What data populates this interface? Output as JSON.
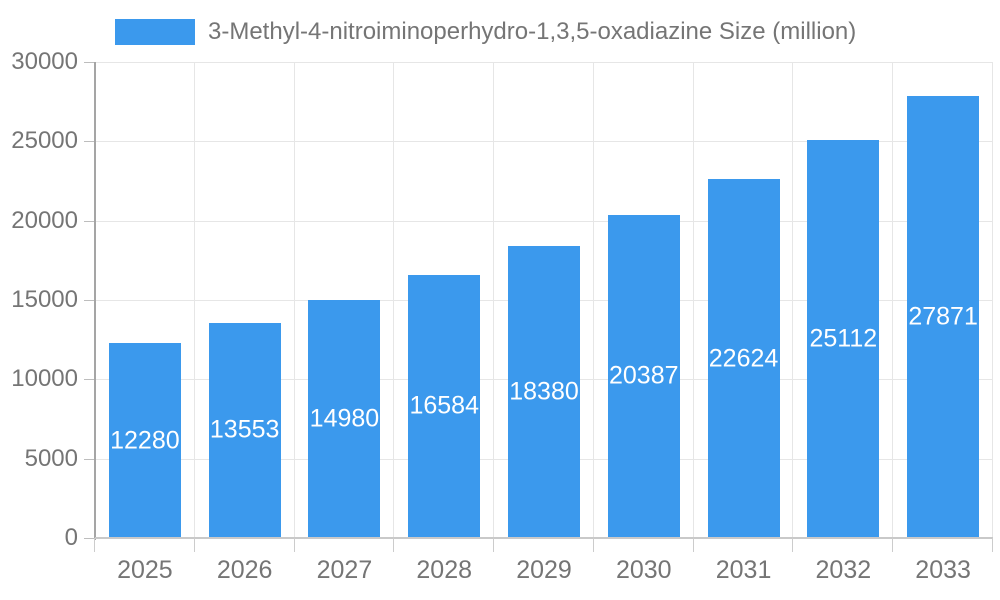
{
  "chart_data": {
    "type": "bar",
    "title": "3-Methyl-4-nitroiminoperhydro-1,3,5-oxadiazine Size (million)",
    "legend_label": "3-Methyl-4-nitroiminoperhydro-1,3,5-oxadiazine Size (million)",
    "legend_position": "top",
    "categories": [
      "2025",
      "2026",
      "2027",
      "2028",
      "2029",
      "2030",
      "2031",
      "2032",
      "2033"
    ],
    "values": [
      12280,
      13553,
      14980,
      16584,
      18380,
      20387,
      22624,
      25112,
      27871
    ],
    "xlabel": "",
    "ylabel": "",
    "ylim": [
      0,
      30000
    ],
    "y_ticks": [
      0,
      5000,
      10000,
      15000,
      20000,
      25000,
      30000
    ],
    "grid": true,
    "value_labels": "inside-center",
    "colors": {
      "bar": "#3b99ed",
      "axis_text": "#757575",
      "value_label_text": "#ffffff",
      "gridline": "#e6e6e6",
      "y_axis_line": "#a5a5a5",
      "baseline": "#c9c9c9",
      "background": "#ffffff"
    }
  }
}
